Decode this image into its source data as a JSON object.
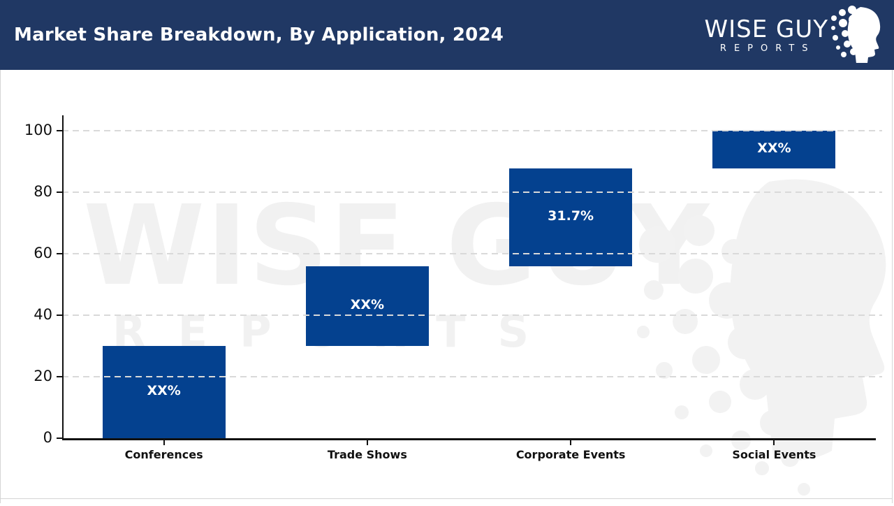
{
  "header": {
    "title": "Market Share Breakdown, By Application, 2024",
    "bg_color": "#203864",
    "logo": {
      "line1": "WISE GUY",
      "line2": "REPORTS"
    }
  },
  "watermark": {
    "line1": "WISE GUY",
    "line2": "REPORTS"
  },
  "chart_data": {
    "type": "bar",
    "subtype": "waterfall",
    "title": "Market Share Breakdown, By Application, 2024",
    "categories": [
      "Conferences",
      "Trade Shows",
      "Corporate Events",
      "Social Events"
    ],
    "series": [
      {
        "name": "Market Share %",
        "segments": [
          {
            "category": "Conferences",
            "start": 0,
            "end": 30,
            "label": "XX%"
          },
          {
            "category": "Trade Shows",
            "start": 30,
            "end": 56,
            "label": "XX%"
          },
          {
            "category": "Corporate Events",
            "start": 56,
            "end": 87.7,
            "label": "31.7%"
          },
          {
            "category": "Social Events",
            "start": 87.7,
            "end": 100,
            "label": "XX%"
          }
        ]
      }
    ],
    "xlabel": "",
    "ylabel": "",
    "ylim": [
      0,
      105
    ],
    "yticks": [
      0,
      20,
      40,
      60,
      80,
      100
    ],
    "grid": true,
    "gridline_style": "dashed",
    "gridline_color": "#d9d9d9",
    "bar_color": "#04418f",
    "bar_label_color": "#ffffff",
    "axis_color": "#111111",
    "legend": "none"
  }
}
